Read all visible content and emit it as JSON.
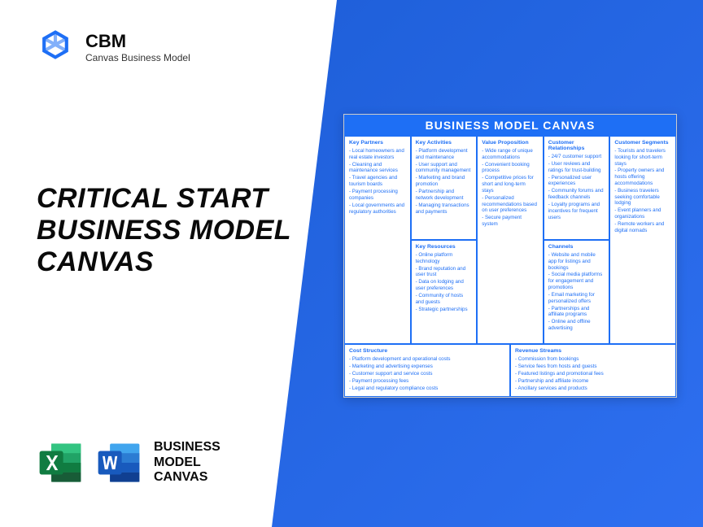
{
  "brand": {
    "name": "CBM",
    "tagline": "Canvas Business Model"
  },
  "title_line1": "CRITICAL START",
  "title_line2": "BUSINESS MODEL",
  "title_line3": "CANVAS",
  "footer_line1": "BUSINESS",
  "footer_line2": "MODEL",
  "footer_line3": "CANVAS",
  "canvas": {
    "title": "BUSINESS MODEL CANVAS",
    "keyPartners": {
      "h": "Key Partners",
      "items": [
        "Local homeowners and real estate investors",
        "Cleaning and maintenance services",
        "Travel agencies and tourism boards",
        "Payment processing companies",
        "Local governments and regulatory authorities"
      ]
    },
    "keyActivities": {
      "h": "Key Activities",
      "items": [
        "Platform development and maintenance",
        "User support and community management",
        "Marketing and brand promotion",
        "Partnership and network development",
        "Managing transactions and payments"
      ]
    },
    "valueProp": {
      "h": "Value Proposition",
      "items": [
        "Wide range of unique accommodations",
        "Convenient booking process",
        "Competitive prices for short and long-term stays",
        "Personalized recommendations based on user preferences",
        "Secure payment system"
      ]
    },
    "custRel": {
      "h": "Customer Relationships",
      "items": [
        "24/7 customer support",
        "User reviews and ratings for trust-building",
        "Personalized user experiences",
        "Community forums and feedback channels",
        "Loyalty programs and incentives for frequent users"
      ]
    },
    "custSeg": {
      "h": "Customer Segments",
      "items": [
        "Tourists and travelers looking for short-term stays",
        "Property owners and hosts offering accommodations",
        "Business travelers seeking comfortable lodging",
        "Event planners and organizations",
        "Remote workers and digital nomads"
      ]
    },
    "keyRes": {
      "h": "Key Resources",
      "items": [
        "Online platform technology",
        "Brand reputation and user trust",
        "Data on lodging and user preferences",
        "Community of hosts and guests",
        "Strategic partnerships"
      ]
    },
    "channels": {
      "h": "Channels",
      "items": [
        "Website and mobile app for listings and bookings",
        "Social media platforms for engagement and promotions",
        "Email marketing for personalized offers",
        "Partnerships and affiliate programs",
        "Online and offline advertising"
      ]
    },
    "cost": {
      "h": "Cost Structure",
      "items": [
        "Platform development and operational costs",
        "Marketing and advertising expenses",
        "Customer support and service costs",
        "Payment processing fees",
        "Legal and regulatory compliance costs"
      ]
    },
    "revenue": {
      "h": "Revenue Streams",
      "items": [
        "Commission from bookings",
        "Service fees from hosts and guests",
        "Featured listings and promotional fees",
        "Partnership and affiliate income",
        "Ancillary services and products"
      ]
    }
  },
  "colors": {
    "primary": "#1e6ff5",
    "excel": "#107c41",
    "word": "#185abd"
  }
}
